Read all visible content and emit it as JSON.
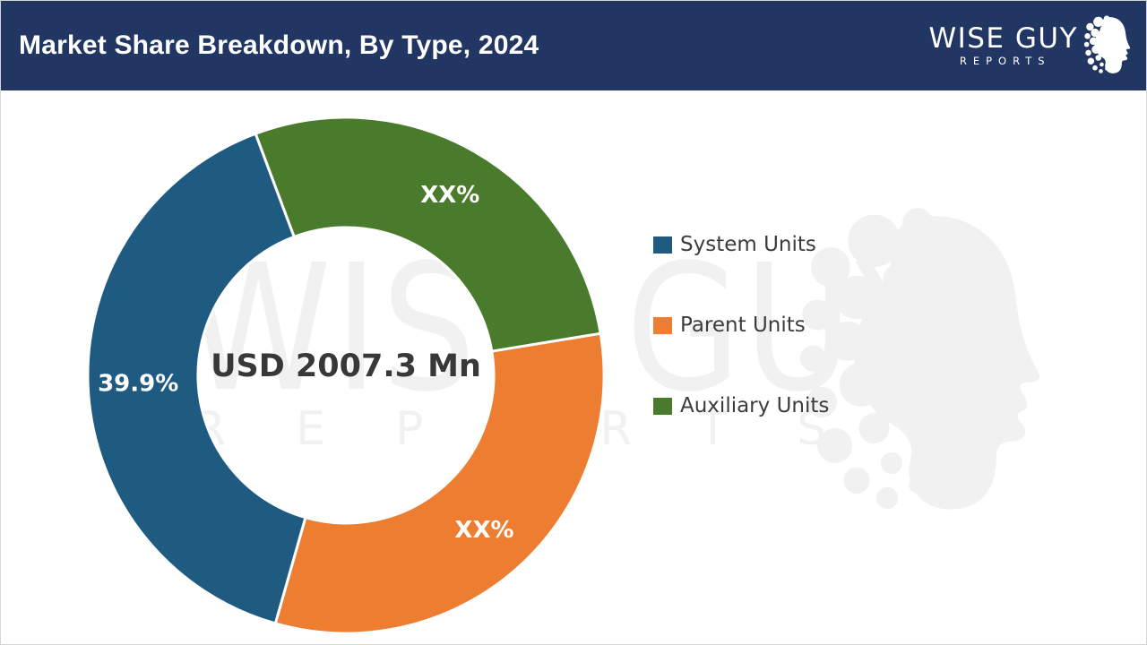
{
  "header": {
    "title": "Market Share Breakdown, By Type, 2024",
    "logo": {
      "line1": "WISE GUY",
      "line2": "REPORTS"
    }
  },
  "watermark": {
    "line1": "WISE GUY",
    "line2": "REPORTS"
  },
  "chart_data": {
    "type": "pie",
    "subtype": "donut",
    "title": "Market Share Breakdown, By Type, 2024",
    "center_label": "USD 2007.3 Mn",
    "legend_position": "right",
    "start_angle_deg": 339.5,
    "direction": "clockwise",
    "segments": [
      {
        "name": "System Units",
        "label": "39.9%",
        "value": 39.9,
        "color": "#1F5A80",
        "value_estimated": false
      },
      {
        "name": "Parent Units",
        "label": "XX%",
        "value": 32.0,
        "color": "#ED7D31",
        "value_estimated": true
      },
      {
        "name": "Auxiliary Units",
        "label": "XX%",
        "value": 28.1,
        "color": "#4A7A2B",
        "value_estimated": true
      }
    ]
  },
  "colors": {
    "header_bg": "#213663",
    "watermark": "#F1F1F2",
    "legend_text": "#3C3C3C",
    "center_text": "#383838",
    "page_border": "#D6D6D6"
  }
}
